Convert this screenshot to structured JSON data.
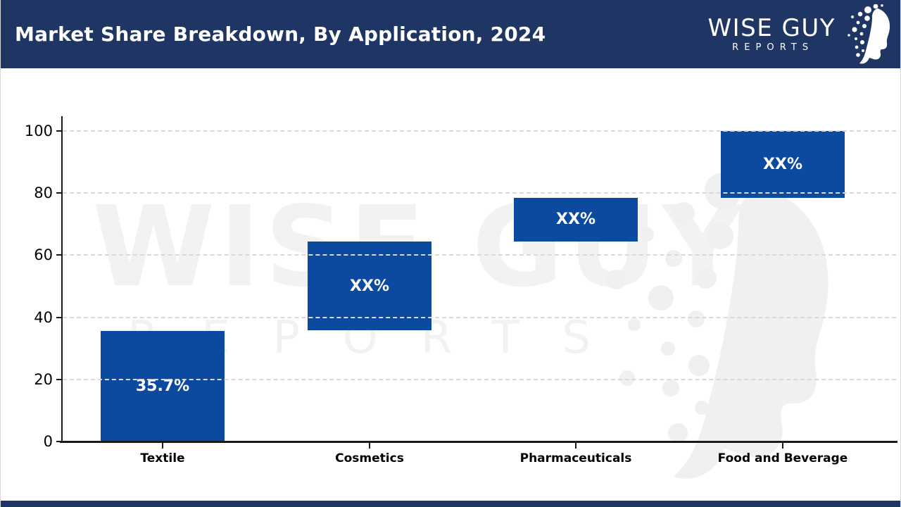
{
  "header": {
    "title": "Market Share Breakdown, By Application, 2024",
    "background_color": "#1f3564",
    "brand": {
      "line1": "WISE GUY",
      "line2": "REPORTS"
    }
  },
  "watermark": {
    "line1": "WISE GUY",
    "line2": "REPORTS"
  },
  "chart_data": {
    "type": "bar",
    "subtype": "waterfall",
    "title": "Market Share Breakdown, By Application, 2024",
    "categories": [
      "Textile",
      "Cosmetics",
      "Pharmaceuticals",
      "Food and Beverage"
    ],
    "segments": [
      {
        "category": "Textile",
        "start": 0,
        "end": 35.7,
        "label": "35.7%"
      },
      {
        "category": "Cosmetics",
        "start": 35.9,
        "end": 64.3,
        "label": "XX%"
      },
      {
        "category": "Pharmaceuticals",
        "start": 64.5,
        "end": 78.5,
        "label": "XX%"
      },
      {
        "category": "Food and Beverage",
        "start": 78.5,
        "end": 100,
        "label": "XX%"
      }
    ],
    "yticks": [
      0,
      20,
      40,
      60,
      80,
      100
    ],
    "ylim": [
      0,
      105
    ],
    "xlabel": "",
    "ylabel": "",
    "grid": "horizontal dashed, drawn over bars",
    "legend": "none",
    "bar_color": "#0b4a9e",
    "bar_label_color": "#ffffff",
    "axis_color": "#1a1a1a",
    "grid_color": "#d9d9d9"
  }
}
